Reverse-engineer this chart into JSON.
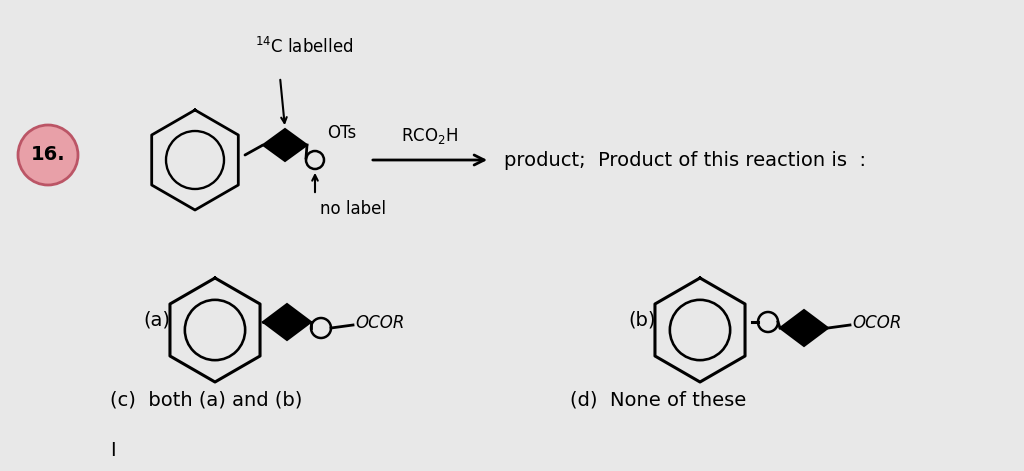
{
  "bg_color": "#e8e8e8",
  "question_circle_color": "#e8a0a8",
  "question_circle_border": "#bb5566",
  "font_size_main": 14,
  "font_size_small": 12,
  "fig_w": 10.24,
  "fig_h": 4.71,
  "dpi": 100,
  "q_num": "16.",
  "label_14C": "$^{14}$C labelled",
  "label_nolabel": "no label",
  "label_OTs": "OTs",
  "label_OCOR": "OCOR",
  "label_reagent": "RCO$_2$H",
  "label_product": "product;  Product of this reaction is  :",
  "option_a": "(a)",
  "option_b": "(b)",
  "option_c": "(c)  both (a) and (b)",
  "option_d": "(d)  None of these"
}
